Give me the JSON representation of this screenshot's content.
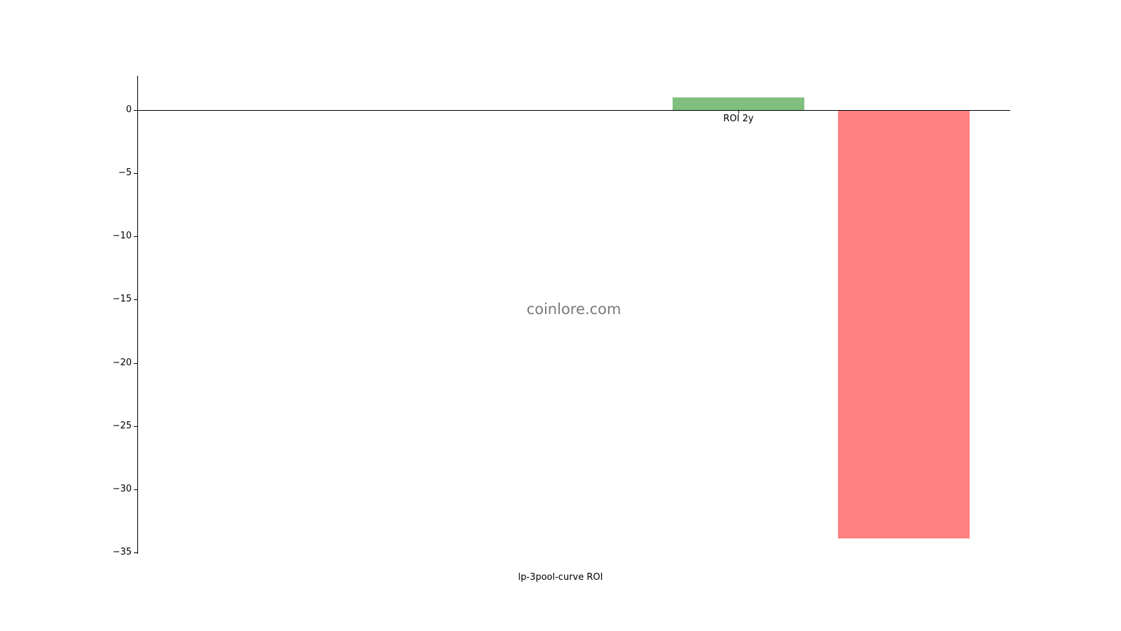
{
  "page": {
    "background": "#ffffff",
    "axis_color": "#000000",
    "text_color": "#000000"
  },
  "watermark": {
    "text": "coinlore.com",
    "color": "#7a7a7a"
  },
  "chart_data": {
    "type": "bar",
    "title": "lp-3pool-curve ROI",
    "xlabel": "lp-3pool-curve ROI",
    "ylabel": "",
    "watermark": "coinlore.com",
    "categories": [
      "ROI 2y",
      ""
    ],
    "values": [
      1.0,
      -33.9
    ],
    "bar_colors": [
      "#80bf80",
      "#ff8080"
    ],
    "positive_color": "#80bf80",
    "negative_color": "#ff8080",
    "ylim": [
      -35.1,
      2.7
    ],
    "yticks": [
      0,
      -5,
      -10,
      -15,
      -20,
      -25,
      -30,
      -35
    ],
    "ytick_labels": [
      "0",
      "−5",
      "−10",
      "−15",
      "−20",
      "−25",
      "−30",
      "−35"
    ],
    "xticks": [
      {
        "bar_index": 0,
        "label": "ROI 2y"
      }
    ],
    "grid": false,
    "legend": "none",
    "x_axis_position": "zero"
  }
}
